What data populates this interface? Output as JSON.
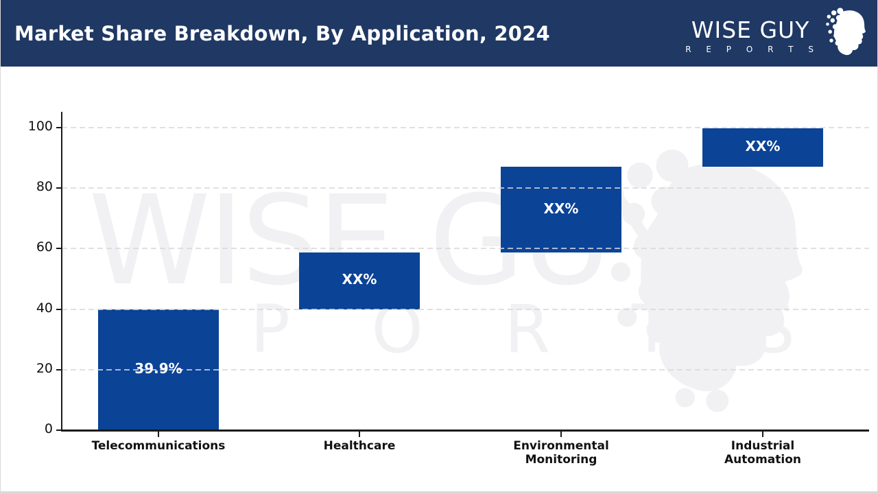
{
  "header": {
    "title": "Market Share Breakdown, By Application, 2024",
    "logo": {
      "line1": "WISE GUY",
      "line2": "R E P O R T S"
    }
  },
  "watermark": {
    "line1": "WISE GUY",
    "line2": "P O R T S"
  },
  "colors": {
    "header_bg": "#1f3864",
    "bar": "#0b4396",
    "bar_label": "#ffffff",
    "gridline": "#d8d8d8",
    "axis": "#1a1a1a",
    "watermark": "#f1f1f3",
    "frame_border": "#d9d9d9"
  },
  "chart_data": {
    "type": "bar",
    "variant": "waterfall",
    "title": "Market Share Breakdown, By Application, 2024",
    "categories": [
      "Telecommunications",
      "Healthcare",
      "Environmental\nMonitoring",
      "Industrial\nAutomation"
    ],
    "segments": [
      {
        "category": "Telecommunications",
        "start": 0,
        "end": 39.9,
        "label": "39.9%"
      },
      {
        "category": "Healthcare",
        "start": 39.9,
        "end": 58.8,
        "label": "XX%"
      },
      {
        "category": "Environmental Monitoring",
        "start": 58.8,
        "end": 87.0,
        "label": "XX%"
      },
      {
        "category": "Industrial Automation",
        "start": 87.0,
        "end": 99.8,
        "label": "XX%"
      }
    ],
    "ylim": [
      0,
      100
    ],
    "yticks": [
      0,
      20,
      40,
      60,
      80,
      100
    ],
    "grid": "horizontal-dashed",
    "legend": "none"
  }
}
